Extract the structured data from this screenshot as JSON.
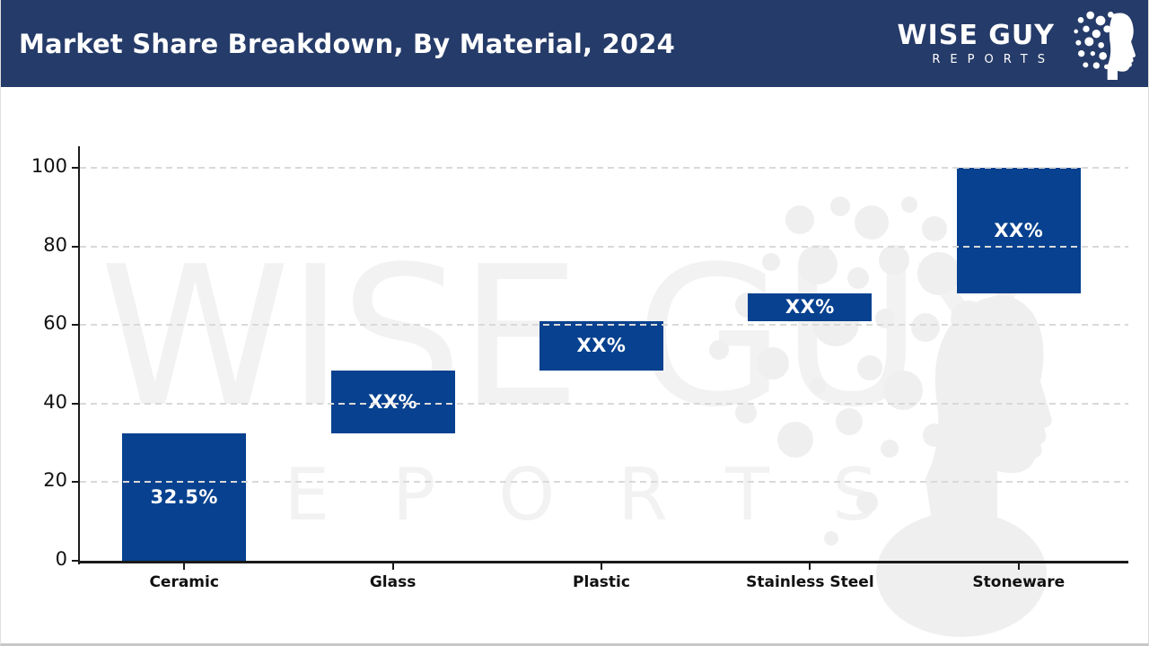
{
  "header": {
    "title": "Market Share Breakdown, By Material, 2024",
    "background_color": "#253b69",
    "logo": {
      "line1": "WISE GUY",
      "line2": "REPORTS"
    }
  },
  "watermark": {
    "line1": "WISE GUY",
    "line2": "REPORTS"
  },
  "chart_data": {
    "type": "bar",
    "subtype": "waterfall",
    "title": "Market Share Breakdown, By Material, 2024",
    "categories": [
      "Ceramic",
      "Glass",
      "Plastic",
      "Stainless Steel",
      "Stoneware"
    ],
    "segments": [
      {
        "category": "Ceramic",
        "start": 0,
        "end": 32.5,
        "label": "32.5%"
      },
      {
        "category": "Glass",
        "start": 32.5,
        "end": 48.5,
        "label": "XX%"
      },
      {
        "category": "Plastic",
        "start": 48.5,
        "end": 61,
        "label": "XX%"
      },
      {
        "category": "Stainless Steel",
        "start": 61,
        "end": 68,
        "label": "XX%"
      },
      {
        "category": "Stoneware",
        "start": 68,
        "end": 100,
        "label": "XX%"
      }
    ],
    "y_ticks": [
      0,
      20,
      40,
      60,
      80,
      100
    ],
    "ylim": [
      0,
      105.5
    ],
    "xlabel": "",
    "ylabel": "",
    "grid": true,
    "legend": false,
    "bar_color": "#07418f",
    "bar_label_color": "#ffffff",
    "gridline_color": "#d9d9d9",
    "axis_color": "#1a1a1a"
  }
}
